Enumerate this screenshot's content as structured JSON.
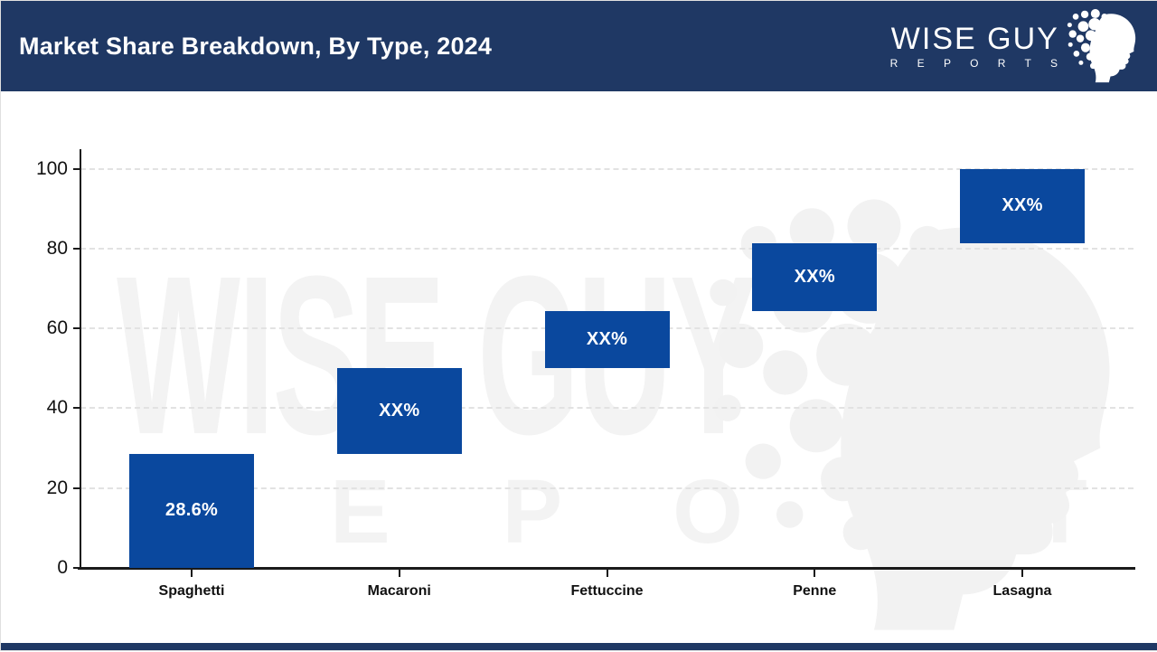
{
  "header": {
    "title": "Market Share Breakdown, By Type, 2024",
    "logo": {
      "name": "WISE GUY",
      "sub": "R E P O R T S"
    }
  },
  "watermark": {
    "line1": "WISE GUY",
    "line2": "R E P O R T S"
  },
  "chart_data": {
    "type": "bar",
    "subtype": "waterfall",
    "title": "Market Share Breakdown, By Type, 2024",
    "categories": [
      "Spaghetti",
      "Macaroni",
      "Fettuccine",
      "Penne",
      "Lasagna"
    ],
    "segments": [
      {
        "category": "Spaghetti",
        "start": 0,
        "end": 28.6,
        "value": 28.6,
        "label": "28.6%"
      },
      {
        "category": "Macaroni",
        "start": 28.6,
        "end": 50.0,
        "value": 21.4,
        "label": "XX%"
      },
      {
        "category": "Fettuccine",
        "start": 50.0,
        "end": 64.3,
        "value": 14.3,
        "label": "XX%"
      },
      {
        "category": "Penne",
        "start": 64.3,
        "end": 81.3,
        "value": 17.0,
        "label": "XX%"
      },
      {
        "category": "Lasagna",
        "start": 81.3,
        "end": 100.0,
        "value": 18.7,
        "label": "XX%"
      }
    ],
    "xlabel": "",
    "ylabel": "",
    "ylim": [
      0,
      100
    ],
    "yticks": [
      0,
      20,
      40,
      60,
      80,
      100
    ],
    "grid": "horizontal-dashed",
    "legend": false,
    "bar_color": "#0a489e",
    "bar_label_color": "#ffffff"
  },
  "colors": {
    "header_bg": "#1f3864",
    "footer_bg": "#1f3864",
    "bar": "#0a489e",
    "grid": "#e2e2e2",
    "axis": "#1a1a1a",
    "text": "#111111",
    "watermark": "#f3f3f3"
  }
}
